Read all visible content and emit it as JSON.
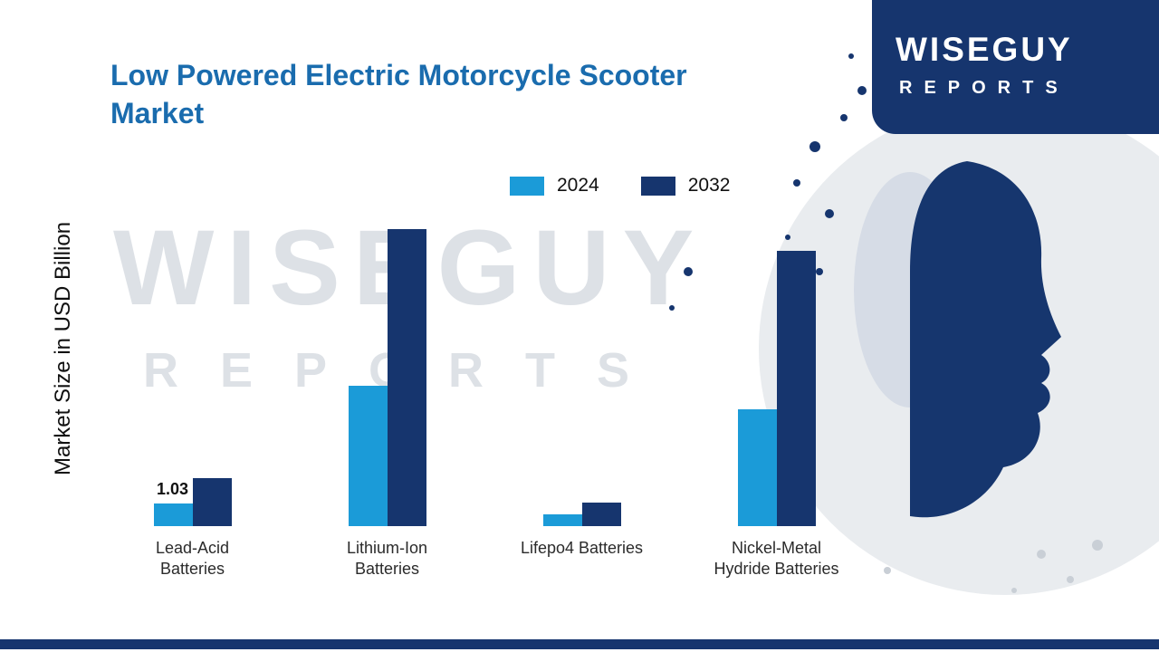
{
  "page": {
    "title": "Low Powered Electric Motorcycle Scooter Market"
  },
  "logo": {
    "line1": "WISEGUY",
    "line2": "REPORTS"
  },
  "watermark": {
    "line1": "WISEGUY",
    "line2": "REPORTS"
  },
  "ylabel": "Market Size in USD Billion",
  "legend": [
    {
      "label": "2024",
      "color": "#1b9bd8"
    },
    {
      "label": "2032",
      "color": "#16356e"
    }
  ],
  "colors": {
    "title_blue": "#1a6cae",
    "bar_2024": "#1b9bd8",
    "bar_2032": "#16356e",
    "footer": "#16356e",
    "watermark_gray": "#dde1e6"
  },
  "chart_data": {
    "type": "bar",
    "title": "Low Powered Electric Motorcycle Scooter Market",
    "ylabel": "Market Size in USD Billion",
    "ylim": [
      0,
      14
    ],
    "grid": false,
    "legend_position": "top",
    "categories": [
      "Lead-Acid Batteries",
      "Lithium-Ion Batteries",
      "Lifepo4 Batteries",
      "Nickel-Metal Hydride Batteries"
    ],
    "series": [
      {
        "name": "2024",
        "color": "#1b9bd8",
        "values": [
          1.03,
          6.4,
          0.55,
          5.3
        ]
      },
      {
        "name": "2032",
        "color": "#16356e",
        "values": [
          2.2,
          13.5,
          1.05,
          12.5
        ]
      }
    ],
    "data_labels": [
      {
        "series": "2024",
        "category": "Lead-Acid Batteries",
        "text": "1.03"
      }
    ]
  }
}
